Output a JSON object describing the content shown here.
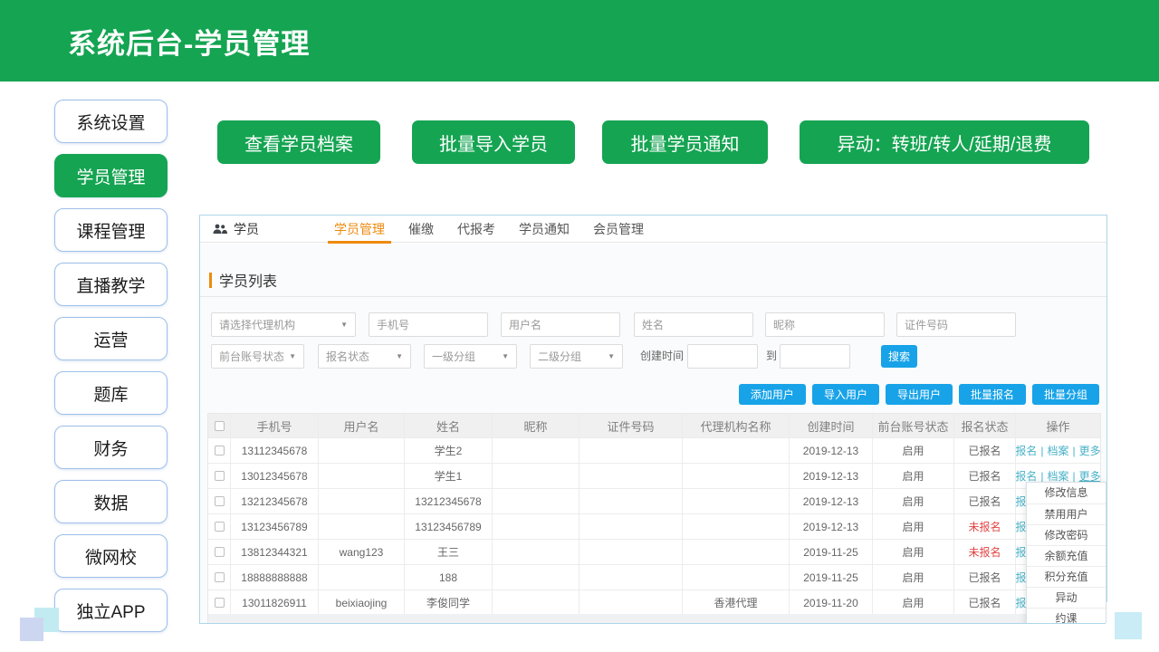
{
  "colors": {
    "green": "#15a452",
    "blue": "#18a3e8",
    "orange": "#ee8a0e",
    "teal": "#49b3c8",
    "red": "#e04545"
  },
  "header": {
    "title": "系统后台-学员管理"
  },
  "sidebar": {
    "items": [
      {
        "label": "系统设置",
        "active": false
      },
      {
        "label": "学员管理",
        "active": true
      },
      {
        "label": "课程管理",
        "active": false
      },
      {
        "label": "直播教学",
        "active": false
      },
      {
        "label": "运营",
        "active": false
      },
      {
        "label": "题库",
        "active": false
      },
      {
        "label": "财务",
        "active": false
      },
      {
        "label": "数据",
        "active": false
      },
      {
        "label": "微网校",
        "active": false
      },
      {
        "label": "独立APP",
        "active": false
      }
    ]
  },
  "quick_actions": [
    {
      "label": "查看学员档案"
    },
    {
      "label": "批量导入学员"
    },
    {
      "label": "批量学员通知"
    },
    {
      "label": "异动：转班/转人/延期/退费"
    }
  ],
  "panel": {
    "module_label": "学员",
    "tabs": [
      {
        "label": "学员管理",
        "active": true
      },
      {
        "label": "催缴",
        "active": false
      },
      {
        "label": "代报考",
        "active": false
      },
      {
        "label": "学员通知",
        "active": false
      },
      {
        "label": "会员管理",
        "active": false
      }
    ],
    "section_title": "学员列表",
    "filters_row1": [
      {
        "type": "select",
        "placeholder": "请选择代理机构"
      },
      {
        "type": "input",
        "placeholder": "手机号"
      },
      {
        "type": "input",
        "placeholder": "用户名"
      },
      {
        "type": "input",
        "placeholder": "姓名"
      },
      {
        "type": "input",
        "placeholder": "昵称"
      },
      {
        "type": "input",
        "placeholder": "证件号码"
      }
    ],
    "filters_row2": {
      "selects": [
        {
          "placeholder": "前台账号状态"
        },
        {
          "placeholder": "报名状态"
        },
        {
          "placeholder": "一级分组"
        },
        {
          "placeholder": "二级分组"
        }
      ],
      "created_label": "创建时间",
      "to_label": "到",
      "search_label": "搜索"
    },
    "bulk_buttons": [
      {
        "label": "添加用户"
      },
      {
        "label": "导入用户"
      },
      {
        "label": "导出用户"
      },
      {
        "label": "批量报名"
      },
      {
        "label": "批量分组"
      }
    ],
    "table": {
      "columns": [
        "手机号",
        "用户名",
        "姓名",
        "昵称",
        "证件号码",
        "代理机构名称",
        "创建时间",
        "前台账号状态",
        "报名状态",
        "操作"
      ],
      "action_links": [
        "报名",
        "档案",
        "更多"
      ],
      "rows": [
        {
          "phone": "13112345678",
          "username": "",
          "name": "学生2",
          "nickname": "",
          "id_number": "",
          "agency": "",
          "created": "2019-12-13",
          "account_status": "启用",
          "signup_status": "已报名",
          "signup_danger": false,
          "more_active": false
        },
        {
          "phone": "13012345678",
          "username": "",
          "name": "学生1",
          "nickname": "",
          "id_number": "",
          "agency": "",
          "created": "2019-12-13",
          "account_status": "启用",
          "signup_status": "已报名",
          "signup_danger": false,
          "more_active": true
        },
        {
          "phone": "13212345678",
          "username": "",
          "name": "13212345678",
          "nickname": "",
          "id_number": "",
          "agency": "",
          "created": "2019-12-13",
          "account_status": "启用",
          "signup_status": "已报名",
          "signup_danger": false,
          "more_active": false
        },
        {
          "phone": "13123456789",
          "username": "",
          "name": "13123456789",
          "nickname": "",
          "id_number": "",
          "agency": "",
          "created": "2019-12-13",
          "account_status": "启用",
          "signup_status": "未报名",
          "signup_danger": true,
          "more_active": false
        },
        {
          "phone": "13812344321",
          "username": "wang123",
          "name": "王三",
          "nickname": "",
          "id_number": "",
          "agency": "",
          "created": "2019-11-25",
          "account_status": "启用",
          "signup_status": "未报名",
          "signup_danger": true,
          "more_active": false
        },
        {
          "phone": "18888888888",
          "username": "",
          "name": "188",
          "nickname": "",
          "id_number": "",
          "agency": "",
          "created": "2019-11-25",
          "account_status": "启用",
          "signup_status": "已报名",
          "signup_danger": false,
          "more_active": false
        },
        {
          "phone": "13011826911",
          "username": "beixiaojing",
          "name": "李俊同学",
          "nickname": "",
          "id_number": "",
          "agency": "香港代理",
          "created": "2019-11-20",
          "account_status": "启用",
          "signup_status": "已报名",
          "signup_danger": false,
          "more_active": false
        }
      ]
    },
    "dropdown_menu": [
      {
        "label": "修改信息"
      },
      {
        "label": "禁用用户"
      },
      {
        "label": "修改密码"
      },
      {
        "label": "余额充值"
      },
      {
        "label": "积分充值"
      },
      {
        "label": "异动"
      },
      {
        "label": "约课"
      }
    ]
  }
}
